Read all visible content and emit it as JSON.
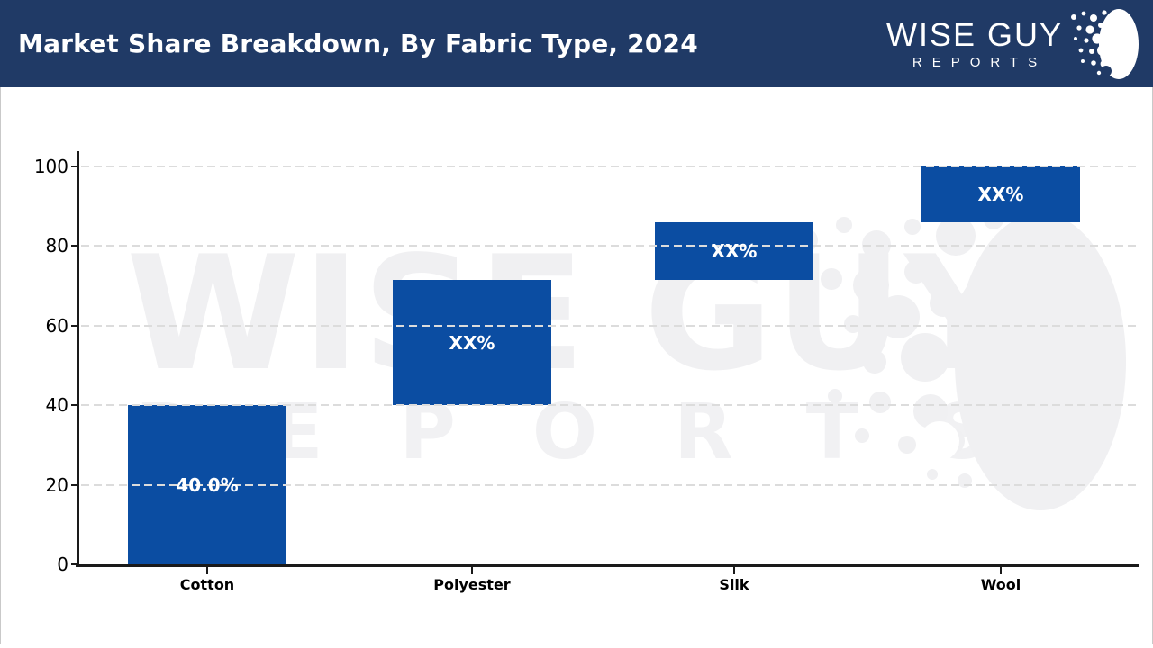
{
  "header": {
    "title": "Market Share Breakdown, By Fabric Type, 2024",
    "logo": {
      "line1": "WISE GUY",
      "line2": "REPORTS"
    }
  },
  "watermark": {
    "line1": "WISE GUY",
    "line2": "REPORTS"
  },
  "colors": {
    "header_bg": "#203A66",
    "bar": "#0B4DA2",
    "grid": "#DCDCDC",
    "axis": "#1A1A1A",
    "bar_label_text": "#FFFFFF",
    "watermark_gray": "#F0F0F2"
  },
  "chart_data": {
    "type": "bar",
    "subtype": "waterfall",
    "title": "Market Share Breakdown, By Fabric Type, 2024",
    "categories": [
      "Cotton",
      "Polyester",
      "Silk",
      "Wool"
    ],
    "values": [
      40.0,
      31.4,
      14.6,
      14.0
    ],
    "cumulative_starts": [
      0,
      40,
      71.4,
      86
    ],
    "cumulative_ends": [
      40,
      71.4,
      86,
      100
    ],
    "bar_labels": [
      "40.0%",
      "XX%",
      "XX%",
      "XX%"
    ],
    "yticks": [
      0,
      20,
      40,
      60,
      80,
      100
    ],
    "ylim": [
      0,
      105
    ],
    "xlabel": "",
    "ylabel": "",
    "grid": "horizontal-dashed",
    "legend": "none"
  }
}
